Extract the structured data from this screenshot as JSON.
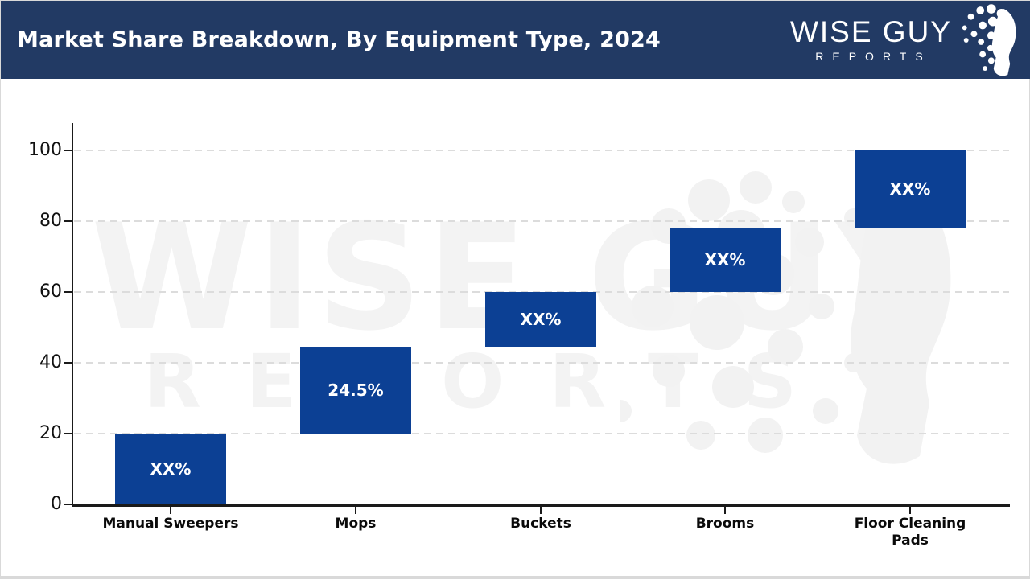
{
  "header": {
    "title": "Market Share Breakdown, By Equipment Type, 2024",
    "logo": {
      "line1": "WISE GUY",
      "line2": "REPORTS"
    }
  },
  "watermark": {
    "line1": "WISE GUY",
    "line2": "REPORTS"
  },
  "chart_data": {
    "type": "bar",
    "subtype": "waterfall",
    "title": "Market Share Breakdown, By Equipment Type, 2024",
    "categories": [
      "Manual Sweepers",
      "Mops",
      "Buckets",
      "Brooms",
      "Floor Cleaning Pads"
    ],
    "bars": [
      {
        "category": "Manual Sweepers",
        "start": 0,
        "end": 20,
        "label": "XX%"
      },
      {
        "category": "Mops",
        "start": 20,
        "end": 44.5,
        "label": "24.5%"
      },
      {
        "category": "Buckets",
        "start": 44.5,
        "end": 60,
        "label": "XX%"
      },
      {
        "category": "Brooms",
        "start": 60,
        "end": 78,
        "label": "XX%"
      },
      {
        "category": "Floor Cleaning Pads",
        "start": 78,
        "end": 100,
        "label": "XX%"
      }
    ],
    "yticks": [
      0,
      20,
      40,
      60,
      80,
      100
    ],
    "ylim": [
      0,
      107
    ],
    "xlabel": "",
    "ylabel": "",
    "grid": "dashed-horizontal",
    "legend": "none",
    "bar_color": "#0c4094",
    "bar_label_color": "#ffffff"
  },
  "colors": {
    "header_bg": "#223a64",
    "bar": "#0c4094",
    "grid": "#dcdcdc",
    "axis": "#1a1a1a",
    "watermark": "#f3f3f3"
  }
}
